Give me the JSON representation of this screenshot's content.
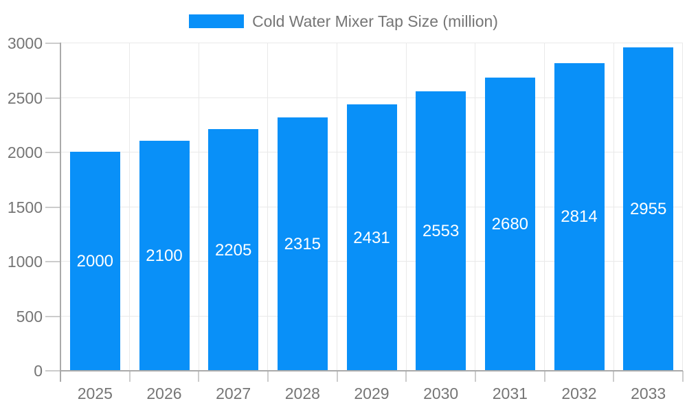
{
  "chart_data": {
    "type": "bar",
    "title": "Cold Water Mixer Tap Size (million)",
    "legend": "Cold Water Mixer Tap Size (million)",
    "legend_position": "top-center",
    "categories": [
      "2025",
      "2026",
      "2027",
      "2028",
      "2029",
      "2030",
      "2031",
      "2032",
      "2033"
    ],
    "values": [
      2000,
      2100,
      2205,
      2315,
      2431,
      2553,
      2680,
      2814,
      2955
    ],
    "xlabel": "",
    "ylabel": "",
    "ylim": [
      0,
      3000
    ],
    "yticks": [
      0,
      500,
      1000,
      1500,
      2000,
      2500,
      3000
    ],
    "grid": true,
    "value_labels": "inside-middle",
    "colors": {
      "bar": "#0990F8",
      "axis": "#aaaaaa",
      "tick": "#cccccc",
      "grid": "#e9e9e9",
      "text": "#757575",
      "value_label": "#ffffff",
      "background": "#ffffff"
    }
  }
}
